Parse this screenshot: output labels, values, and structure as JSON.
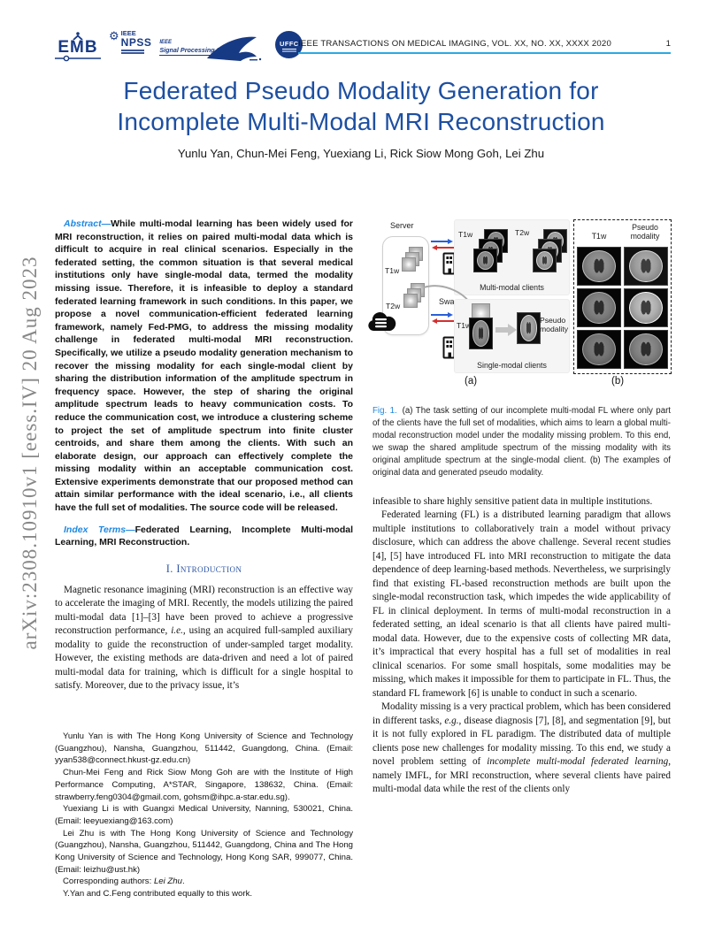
{
  "header": {
    "journal": "IEEE TRANSACTIONS ON MEDICAL IMAGING, VOL. XX, NO. XX, XXXX 2020",
    "page_number": "1",
    "logos": {
      "emb": "EMB",
      "npss_ieee": "IEEE",
      "npss": "NPSS",
      "sps_ieee": "IEEE",
      "sps": "Signal Processing Society",
      "uffc": "UFFC"
    },
    "rule_color": "#2ba9e0"
  },
  "sidebar": {
    "arxiv_label": "arXiv:2308.10910v1  [eess.IV]  20 Aug 2023"
  },
  "title": {
    "line1": "Federated Pseudo Modality Generation for",
    "line2": "Incomplete Multi-Modal MRI Reconstruction",
    "color": "#1d4fa1"
  },
  "authors": "Yunlu Yan, Chun-Mei Feng, Yuexiang Li, Rick Siow Mong Goh, Lei Zhu",
  "abstract": {
    "label": "Abstract—",
    "text": "While multi-modal learning has been widely used for MRI reconstruction, it relies on paired multi-modal data which is difficult to acquire in real clinical scenarios. Especially in the federated setting, the common situation is that several medical institutions only have single-modal data, termed the modality missing issue. Therefore, it is infeasible to deploy a standard federated learning framework in such conditions. In this paper, we propose a novel communication-efficient federated learning framework, namely Fed-PMG, to address the missing modality challenge in federated multi-modal MRI reconstruction. Specifically, we utilize a pseudo modality generation mechanism to recover the missing modality for each single-modal client by sharing the distribution information of the amplitude spectrum in frequency space. However, the step of sharing the original amplitude spectrum leads to heavy communication costs. To reduce the communication cost, we introduce a clustering scheme to project the set of amplitude spectrum into finite cluster centroids, and share them among the clients. With such an elaborate design, our approach can effectively complete the missing modality within an acceptable communication cost. Extensive experiments demonstrate that our proposed method can attain similar performance with the ideal scenario, i.e., all clients have the full set of modalities. The source code will be released."
  },
  "index_terms": {
    "label": "Index Terms—",
    "text": "Federated Learning, Incomplete Multi-modal Learning, MRI Reconstruction."
  },
  "intro": {
    "heading": "I. Introduction",
    "p1_segments": [
      {
        "t": "Magnetic resonance imagining (MRI) reconstruction is an effective way to accelerate the imaging of MRI. Recently, the models utilizing the paired multi-modal data [1]–[3] have been proved to achieve a progressive reconstruction performance, "
      },
      {
        "t": "i.e.,",
        "i": true
      },
      {
        "t": " using an acquired full-sampled auxiliary modality to guide the reconstruction of under-sampled target modality. However, the existing methods are data-driven and need a lot of paired multi-modal data for training, which is difficult for a single hospital to satisfy. Moreover, due to the privacy issue, it’s"
      }
    ]
  },
  "rightcol": {
    "p1": "infeasible to share highly sensitive patient data in multiple institutions.",
    "p2": "Federated learning (FL) is a distributed learning paradigm that allows multiple institutions to collaboratively train a model without privacy disclosure, which can address the above challenge. Several recent studies [4], [5] have introduced FL into MRI reconstruction to mitigate the data dependence of deep learning-based methods. Nevertheless, we surprisingly find that existing FL-based reconstruction methods are built upon the single-modal reconstruction task, which impedes the wide applicability of FL in clinical deployment. In terms of multi-modal reconstruction in a federated setting, an ideal scenario is that all clients have paired multi-modal data. However, due to the expensive costs of collecting MR data, it’s impractical that every hospital has a full set of modalities in real clinical scenarios. For some small hospitals, some modalities may be missing, which makes it impossible for them to participate in FL. Thus, the standard FL framework [6] is unable to conduct in such a scenario.",
    "p3_segments": [
      {
        "t": "Modality missing is a very practical problem, which has been considered in different tasks, "
      },
      {
        "t": "e.g.,",
        "i": true
      },
      {
        "t": " disease diagnosis [7], [8], and segmentation [9], but it is not fully explored in FL paradigm. The distributed data of multiple clients pose new challenges for modality missing. To this end, we study a novel problem setting of "
      },
      {
        "t": "incomplete multi-modal federated learning",
        "i": true
      },
      {
        "t": ", namely IMFL, for MRI reconstruction, where several clients have paired multi-modal data while the rest of the clients only"
      }
    ]
  },
  "figure": {
    "caption_label": "Fig. 1.",
    "caption_text": "(a) The task setting of our incomplete multi-modal FL where only part of the clients have the full set of modalities, which aims to learn a global multi-modal reconstruction model under the modality missing problem. To this end, we swap the shared amplitude spectrum of the missing modality with its original amplitude spectrum at the single-modal client. (b) The examples of original data and generated pseudo modality.",
    "diagram": {
      "server_label": "Server",
      "server_t1w": "T1w",
      "server_t2w": "T2w",
      "client_t1w": "T1w",
      "client_t2w": "T2w",
      "multi_modal_clients": "Multi-modal clients",
      "swap_label": "Swap",
      "single_t1w": "T1w",
      "pseudo_modality": "Pseudo modality",
      "single_modal_clients": "Single-modal clients",
      "panel_a": "(a)",
      "panel_b": "(b)",
      "pb_col1": "T1w",
      "pb_col2": "Pseudo modality",
      "arrow_up_color": "#2b5fd9",
      "arrow_down_color": "#d23030"
    }
  },
  "footnotes": {
    "items": [
      "Yunlu Yan is with The Hong Kong University of Science and Technology (Guangzhou), Nansha, Guangzhou, 511442, Guangdong, China. (Email: yyan538@connect.hkust-gz.edu.cn)",
      "Chun-Mei Feng and Rick Siow Mong Goh are with the Institute of High Performance Computing, A*STAR, Singapore, 138632, China. (Email: strawberry.feng0304@gmail.com, gohsm@ihpc.a-star.edu.sg).",
      "Yuexiang Li is with Guangxi Medical University, Nanning, 530021, China. (Email: leeyuexiang@163.com)",
      "Lei Zhu is with The Hong Kong University of Science and Technology (Guangzhou), Nansha, Guangzhou, 511442, Guangdong, China and The Hong Kong University of Science and Technology, Hong Kong SAR, 999077, China. (Email: leizhu@ust.hk)",
      "Y.Yan and C.Feng contributed equally to this work."
    ],
    "corresponding_segments": [
      {
        "t": "Corresponding authors: "
      },
      {
        "t": "Lei Zhu",
        "i": true
      },
      {
        "t": "."
      }
    ]
  }
}
